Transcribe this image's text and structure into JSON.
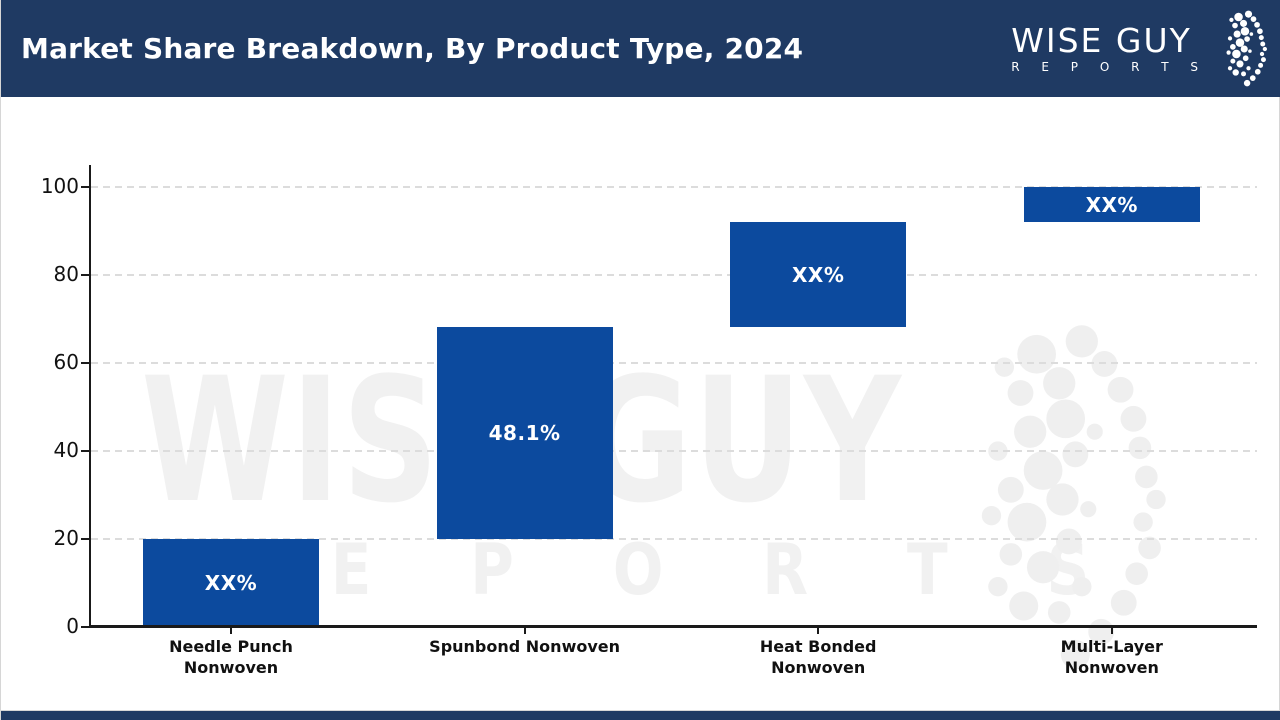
{
  "header": {
    "title": "Market Share Breakdown, By Product Type, 2024",
    "brand_line1": "WISE GUY",
    "brand_line2": "R E P O R T S"
  },
  "watermark": {
    "line1": "WISE GUY",
    "line2": "R E P O R T S"
  },
  "icons": {
    "brand_face": "dotted-face-profile-icon"
  },
  "colors": {
    "header_bg": "#1f3a63",
    "footer_bg": "#1f3a63",
    "bar": "#0c4a9e",
    "grid": "#dcdcdc",
    "axis": "#1a1a1a",
    "title_text": "#ffffff",
    "bar_label_text": "#ffffff",
    "watermark": "#f1f1f1"
  },
  "chart_data": {
    "type": "bar",
    "subtype": "floating-waterfall",
    "title": "Market Share Breakdown, By Product Type, 2024",
    "xlabel": "",
    "ylabel": "",
    "ylim": [
      0,
      100
    ],
    "y_ticks": [
      0,
      20,
      40,
      60,
      80,
      100
    ],
    "grid": "horizontal-dashed",
    "legend": "none",
    "categories": [
      "Needle Punch Nonwoven",
      "Spunbond Nonwoven",
      "Heat Bonded Nonwoven",
      "Multi-Layer Nonwoven"
    ],
    "bars": [
      {
        "category": "Needle Punch Nonwoven",
        "label_lines": [
          "Needle Punch",
          "Nonwoven"
        ],
        "start": 0,
        "end": 20,
        "value_label": "XX%"
      },
      {
        "category": "Spunbond Nonwoven",
        "label_lines": [
          "Spunbond Nonwoven"
        ],
        "start": 20,
        "end": 68.1,
        "value_label": "48.1%",
        "value": 48.1
      },
      {
        "category": "Heat Bonded Nonwoven",
        "label_lines": [
          "Heat Bonded",
          "Nonwoven"
        ],
        "start": 68.1,
        "end": 92,
        "value_label": "XX%"
      },
      {
        "category": "Multi-Layer Nonwoven",
        "label_lines": [
          "Multi-Layer",
          "Nonwoven"
        ],
        "start": 92,
        "end": 100,
        "value_label": "XX%"
      }
    ]
  }
}
